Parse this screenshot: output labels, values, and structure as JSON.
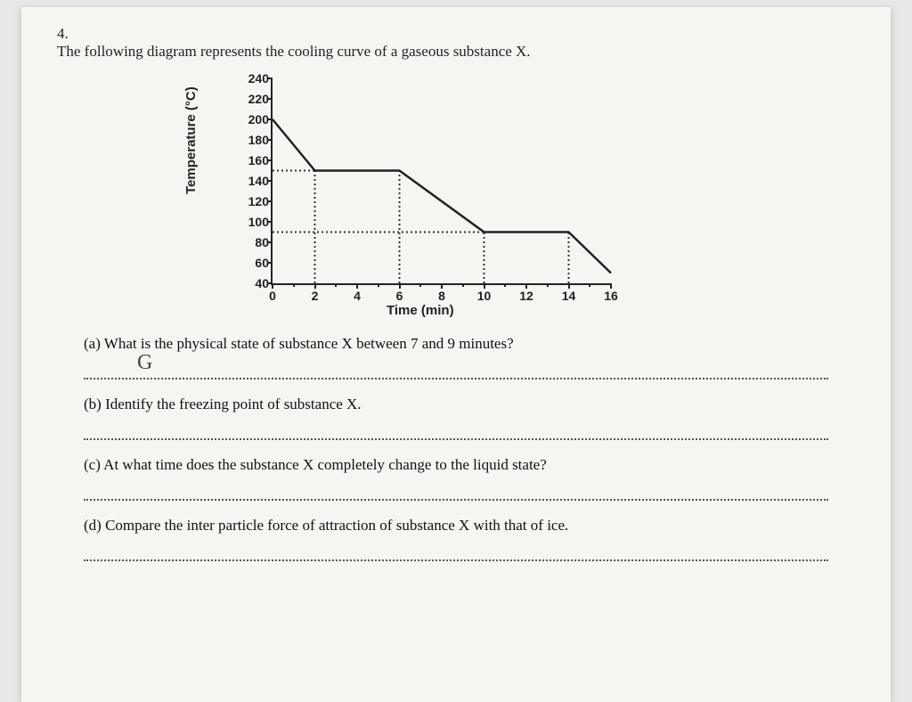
{
  "question": {
    "number": "4.",
    "text": "The following diagram represents the cooling curve of a gaseous substance X."
  },
  "chart": {
    "type": "line",
    "ylabel": "Temperature (°C)",
    "xlabel": "Time (min)",
    "ylim": [
      40,
      240
    ],
    "xlim": [
      0,
      16
    ],
    "yticks": [
      40,
      60,
      80,
      100,
      120,
      140,
      160,
      180,
      200,
      220,
      240
    ],
    "xticks": [
      0,
      2,
      4,
      6,
      8,
      10,
      12,
      14,
      16
    ],
    "line_color": "#222222",
    "line_width": 2.5,
    "guide_color": "#333333",
    "background_color": "#f5f5f2",
    "axis_color": "#222222",
    "points": [
      {
        "x": 0,
        "y": 200
      },
      {
        "x": 2,
        "y": 150
      },
      {
        "x": 6,
        "y": 150
      },
      {
        "x": 10,
        "y": 90
      },
      {
        "x": 14,
        "y": 90
      },
      {
        "x": 16,
        "y": 50
      }
    ],
    "guides": [
      {
        "type": "v",
        "x": 2,
        "y_from": 40,
        "y_to": 150
      },
      {
        "type": "v",
        "x": 6,
        "y_from": 40,
        "y_to": 150
      },
      {
        "type": "h",
        "x_from": 0,
        "x_to": 6,
        "y": 150
      },
      {
        "type": "v",
        "x": 10,
        "y_from": 40,
        "y_to": 90
      },
      {
        "type": "v",
        "x": 14,
        "y_from": 40,
        "y_to": 90
      },
      {
        "type": "h",
        "x_from": 0,
        "x_to": 14,
        "y": 90
      }
    ]
  },
  "subquestions": {
    "a": "(a) What is the physical state of substance X between 7 and 9 minutes?",
    "a_answer": "G",
    "b": "(b) Identify the freezing point of substance X.",
    "c": "(c) At what time does the substance X completely change to the liquid state?",
    "d": "(d) Compare the inter particle force of attraction of substance X with that of ice."
  }
}
